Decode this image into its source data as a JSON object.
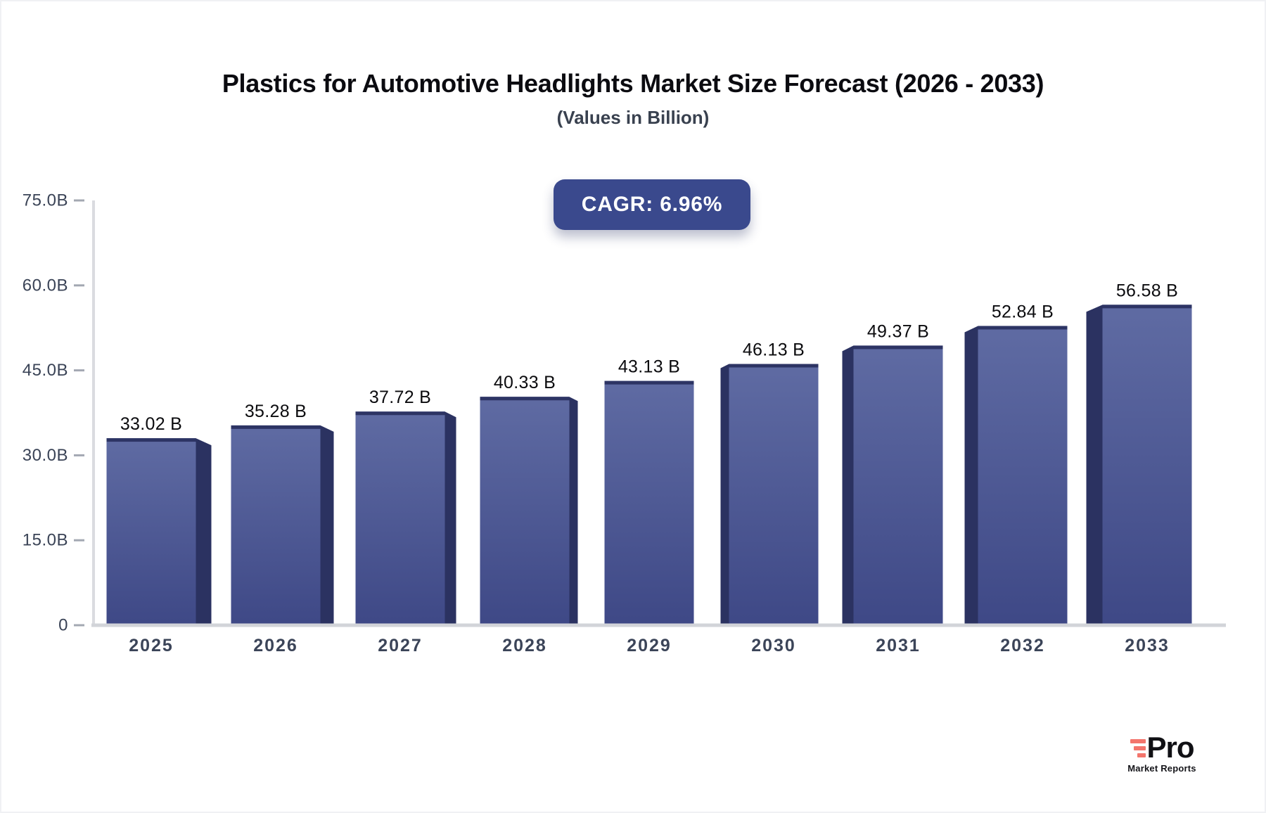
{
  "header": {
    "title": "Plastics for Automotive Headlights Market Size Forecast (2026 - 2033)",
    "subtitle": "(Values in Billion)"
  },
  "badge": {
    "label": "CAGR: 6.96%",
    "background": "#3a498d",
    "text_color": "#ffffff"
  },
  "chart_data": {
    "type": "bar",
    "title": "Plastics for Automotive Headlights Market Size Forecast (2026 - 2033)",
    "subtitle": "(Values in Billion)",
    "categories": [
      "2025",
      "2026",
      "2027",
      "2028",
      "2029",
      "2030",
      "2031",
      "2032",
      "2033"
    ],
    "values": [
      33.02,
      35.28,
      37.72,
      40.33,
      43.13,
      46.13,
      49.37,
      52.84,
      56.58
    ],
    "value_labels": [
      "33.02 B",
      "35.28 B",
      "37.72 B",
      "40.33 B",
      "43.13 B",
      "46.13 B",
      "49.37 B",
      "52.84 B",
      "56.58 B"
    ],
    "xlabel": "",
    "ylabel": "",
    "ylim": [
      0,
      75
    ],
    "yticks": [
      0,
      15,
      30,
      45,
      60,
      75
    ],
    "ytick_labels": [
      "0",
      "15.0B",
      "30.0B",
      "45.0B",
      "60.0B",
      "75.0B"
    ],
    "grid": false,
    "legend": false,
    "style_3d": true,
    "colors": {
      "bar_front_top": "#5f6ba3",
      "bar_front_bottom": "#3e4886",
      "bar_side": "#2b3261",
      "bar_top_edge": "#2d3464",
      "axis_line": "#dadbe0",
      "baseline": "#d2d4d9",
      "tick_dash": "#a3a8b2",
      "tick_text": "#3a4356",
      "category_text": "#3b4458",
      "value_text": "#0b0b0e"
    }
  },
  "logo": {
    "name": "Pro",
    "tagline": "Market Reports",
    "flag_color": "#f3756c"
  }
}
